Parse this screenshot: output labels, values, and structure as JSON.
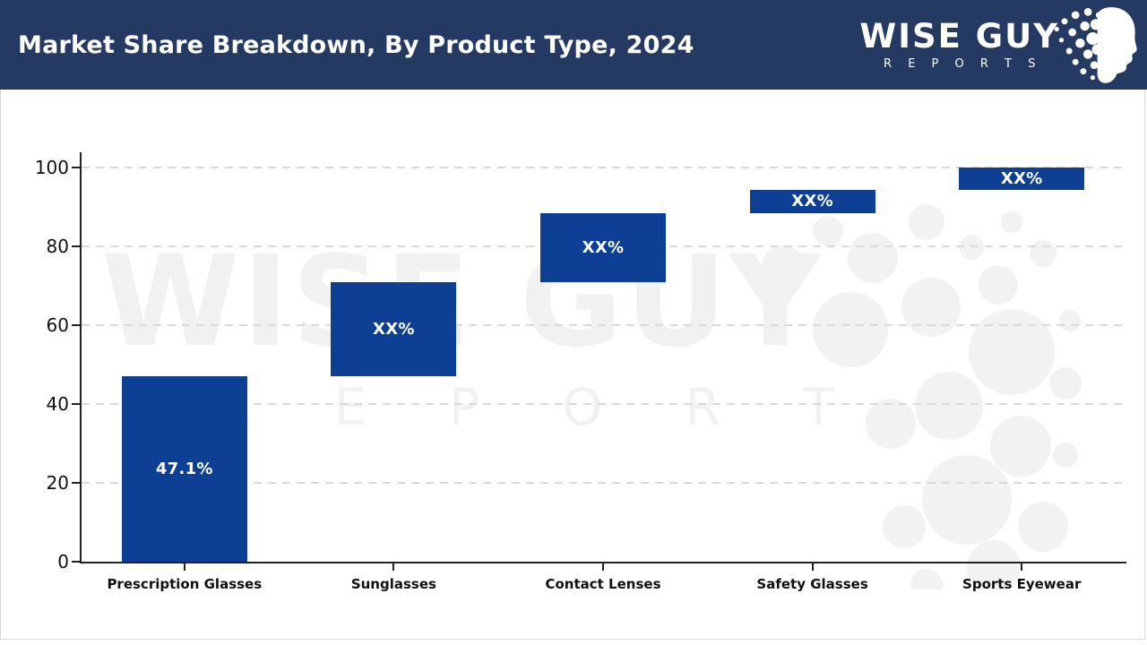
{
  "header": {
    "title": "Market Share Breakdown, By Product Type, 2024",
    "logo": {
      "name": "WISE GUY",
      "sub": "R E P O R T S"
    }
  },
  "watermark": {
    "line1": "WISE GUY",
    "line2": "R E P O R T S"
  },
  "chart_data": {
    "type": "bar",
    "subtype": "waterfall",
    "title": "Market Share Breakdown, By Product Type, 2024",
    "categories": [
      "Prescription Glasses",
      "Sunglasses",
      "Contact Lenses",
      "Safety Glasses",
      "Sports Eyewear"
    ],
    "bars": [
      {
        "category": "Prescription Glasses",
        "label": "47.1%",
        "start": 0,
        "end": 47.1,
        "value": 47.1
      },
      {
        "category": "Sunglasses",
        "label": "XX%",
        "start": 47.1,
        "end": 70.8,
        "value": 23.7
      },
      {
        "category": "Contact Lenses",
        "label": "XX%",
        "start": 70.8,
        "end": 88.5,
        "value": 17.7
      },
      {
        "category": "Safety Glasses",
        "label": "XX%",
        "start": 88.5,
        "end": 94.3,
        "value": 5.8
      },
      {
        "category": "Sports Eyewear",
        "label": "XX%",
        "start": 94.3,
        "end": 100.0,
        "value": 5.7
      }
    ],
    "xlabel": "",
    "ylabel": "",
    "ylim": [
      0,
      100
    ],
    "yticks": [
      0,
      20,
      40,
      60,
      80,
      100
    ],
    "grid": "horizontal-dashed",
    "legend": "none",
    "bar_color": "#0d4094",
    "bar_label_color": "#ffffff",
    "header_color": "#243a63"
  }
}
